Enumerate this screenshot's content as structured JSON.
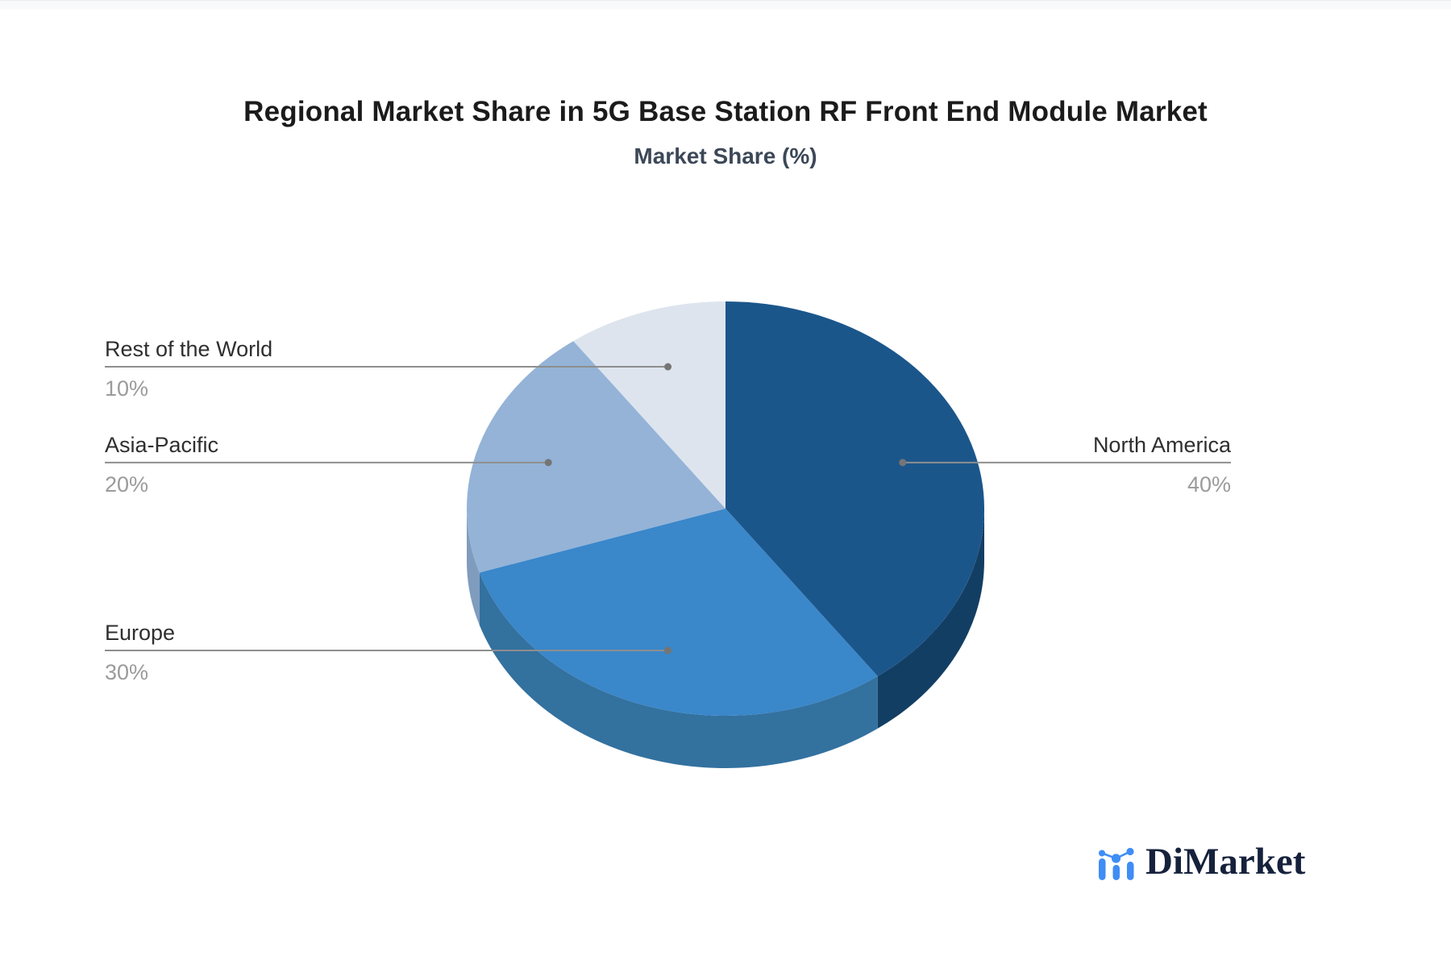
{
  "page": {
    "background": "#ffffff",
    "top_strip_color": "#f8f9fa"
  },
  "header": {
    "title": "Regional Market Share in 5G Base Station RF Front End Module Market",
    "subtitle": "Market Share (%)"
  },
  "chart_data": {
    "type": "pie",
    "title": "Market Share (%)",
    "unit": "%",
    "style": "3d",
    "start_angle_deg": 0,
    "direction": "clockwise",
    "labels": [
      "North America",
      "Europe",
      "Asia-Pacific",
      "Rest of the World"
    ],
    "values": [
      40,
      30,
      20,
      10
    ],
    "display_values": [
      "40%",
      "30%",
      "20%",
      "10%"
    ],
    "colors": [
      "#1b568b",
      "#3a87ca",
      "#94b3d7",
      "#dde4ee"
    ],
    "side_colors": [
      "#133e63",
      "#33719f",
      "#7f9cbe",
      "#c3cddb"
    ],
    "legend_position": "callout-labels",
    "leader_line_color": "#8e8e8e",
    "dot_color": "#757575",
    "label_color": "#2f2f2f",
    "value_color": "#9b9b9b"
  },
  "branding": {
    "name": "DiMarket",
    "icon": "bar-line-chart-icon",
    "icon_color": "#3f8df5",
    "text_color": "#16223c"
  }
}
